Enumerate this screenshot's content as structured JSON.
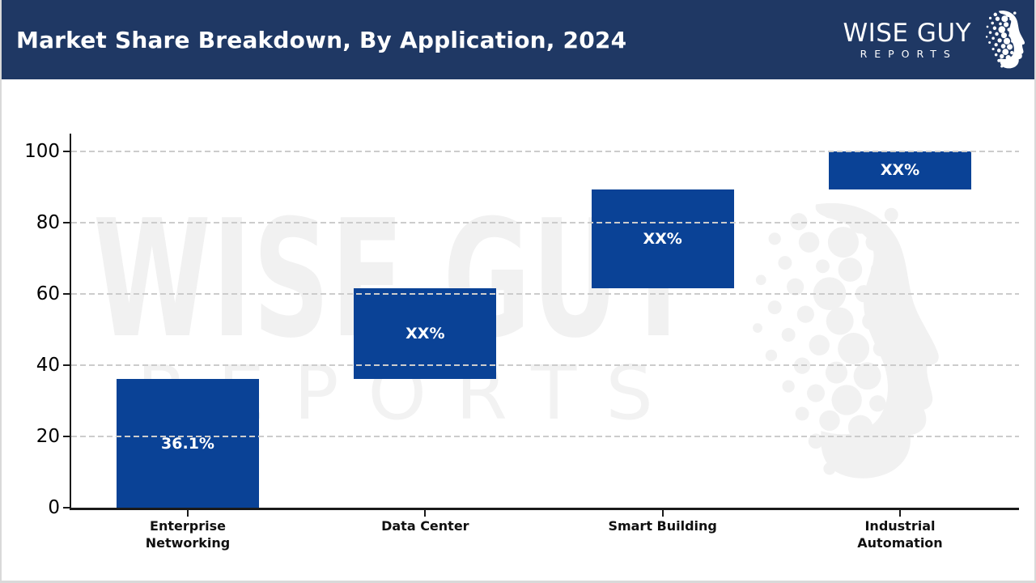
{
  "header": {
    "title": "Market Share Breakdown, By Application, 2024",
    "brand": {
      "name": "WISE GUY",
      "sub": "REPORTS"
    }
  },
  "watermark": {
    "line1": "WISE GUY",
    "line2": "REPORTS"
  },
  "chart_data": {
    "type": "bar",
    "subtype": "floating-segment-waterfall",
    "title": "Market Share Breakdown, By Application, 2024",
    "categories": [
      "Enterprise Networking",
      "Data Center",
      "Smart Building",
      "Industrial Automation"
    ],
    "category_lines": [
      [
        "Enterprise",
        "Networking"
      ],
      [
        "Data Center"
      ],
      [
        "Smart Building"
      ],
      [
        "Industrial",
        "Automation"
      ]
    ],
    "segments": [
      {
        "category": "Enterprise Networking",
        "start": 0,
        "end": 36.1,
        "label": "36.1%"
      },
      {
        "category": "Data Center",
        "start": 36.1,
        "end": 61.6,
        "label": "XX%"
      },
      {
        "category": "Smart Building",
        "start": 61.6,
        "end": 89.4,
        "label": "XX%"
      },
      {
        "category": "Industrial Automation",
        "start": 89.4,
        "end": 100,
        "label": "XX%"
      }
    ],
    "yticks": [
      0,
      20,
      40,
      60,
      80,
      100
    ],
    "ylim": [
      0,
      105
    ],
    "xlabel": "",
    "ylabel": "",
    "grid": "dashed-horizontal-over-bars",
    "legend": "none",
    "bar_color": "#0a4296",
    "bar_label_color": "#ffffff"
  },
  "colors": {
    "header_bg": "#1f3864",
    "bar": "#0a4296",
    "grid": "#cccccc",
    "axis": "#1a1a1a",
    "watermark": "#f1f1f1",
    "page_border": "#d9d9d9"
  }
}
